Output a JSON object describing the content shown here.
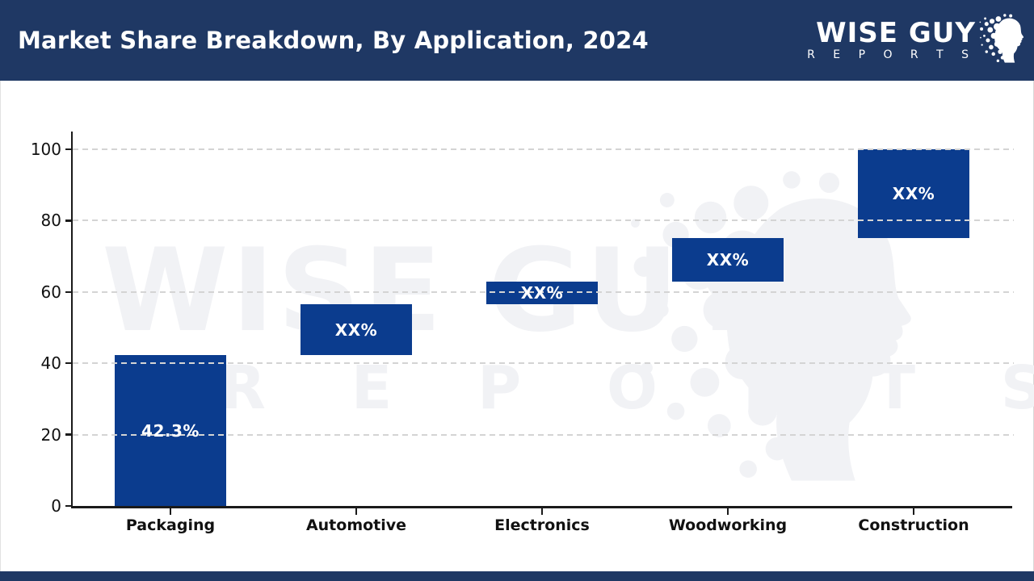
{
  "header": {
    "title": "Market Share Breakdown, By Application, 2024",
    "logo": {
      "name": "WISE GUY",
      "sub": "R E P O R T S"
    }
  },
  "watermark": {
    "line1": "WISE GUY",
    "line2": "R E P O R T S"
  },
  "chart_data": {
    "type": "bar",
    "variant": "waterfall",
    "title": "Market Share Breakdown, By Application, 2024",
    "categories": [
      "Packaging",
      "Automotive",
      "Electronics",
      "Woodworking",
      "Construction"
    ],
    "segments": [
      {
        "category": "Packaging",
        "start": 0,
        "end": 42.3,
        "label": "42.3%"
      },
      {
        "category": "Automotive",
        "start": 42.3,
        "end": 56.5,
        "label": "XX%"
      },
      {
        "category": "Electronics",
        "start": 56.5,
        "end": 63.0,
        "label": "XX%"
      },
      {
        "category": "Woodworking",
        "start": 63.0,
        "end": 75.2,
        "label": "XX%"
      },
      {
        "category": "Construction",
        "start": 75.2,
        "end": 100,
        "label": "XX%"
      }
    ],
    "ylabel": "",
    "xlabel": "",
    "ylim": [
      0,
      100
    ],
    "yticks": [
      0,
      20,
      40,
      60,
      80,
      100
    ],
    "grid": "horizontal-dashed",
    "legend": "none"
  },
  "colors": {
    "header_bg": "#1f3864",
    "footer_bg": "#1f3864",
    "bar": "#0b3c8e",
    "grid": "#d4d4d4",
    "axis": "#1a1a1a",
    "watermark": "#f1f2f5"
  }
}
